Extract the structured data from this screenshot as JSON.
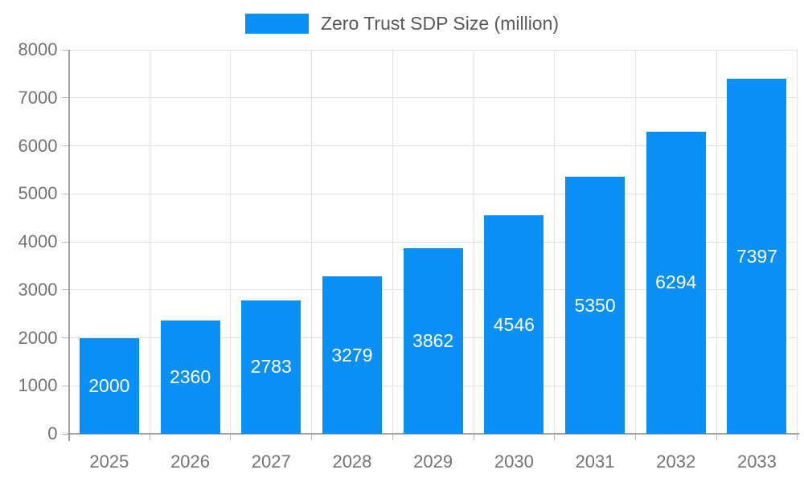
{
  "legend": {
    "label": "Zero Trust SDP Size (million)"
  },
  "chart_data": {
    "type": "bar",
    "title": "",
    "xlabel": "",
    "ylabel": "",
    "legend_position": "top-center",
    "grid": true,
    "bar_value_labels_visible": true,
    "categories": [
      "2025",
      "2026",
      "2027",
      "2028",
      "2029",
      "2030",
      "2031",
      "2032",
      "2033"
    ],
    "series": [
      {
        "name": "Zero Trust SDP Size (million)",
        "values": [
          2000,
          2360,
          2783,
          3279,
          3862,
          4546,
          5350,
          6294,
          7397
        ]
      }
    ],
    "ylim": [
      0,
      8000
    ],
    "yticks": [
      0,
      1000,
      2000,
      3000,
      4000,
      5000,
      6000,
      7000,
      8000
    ],
    "colors": {
      "bar": "#0a90f5",
      "bar_value_text": "#ffffff",
      "axis_text": "#737373",
      "legend_text": "#595959",
      "gridline": "#e3e3e3",
      "axis_line": "#a3a3a3",
      "tick": "#b9b9b9",
      "background": "#ffffff"
    }
  }
}
